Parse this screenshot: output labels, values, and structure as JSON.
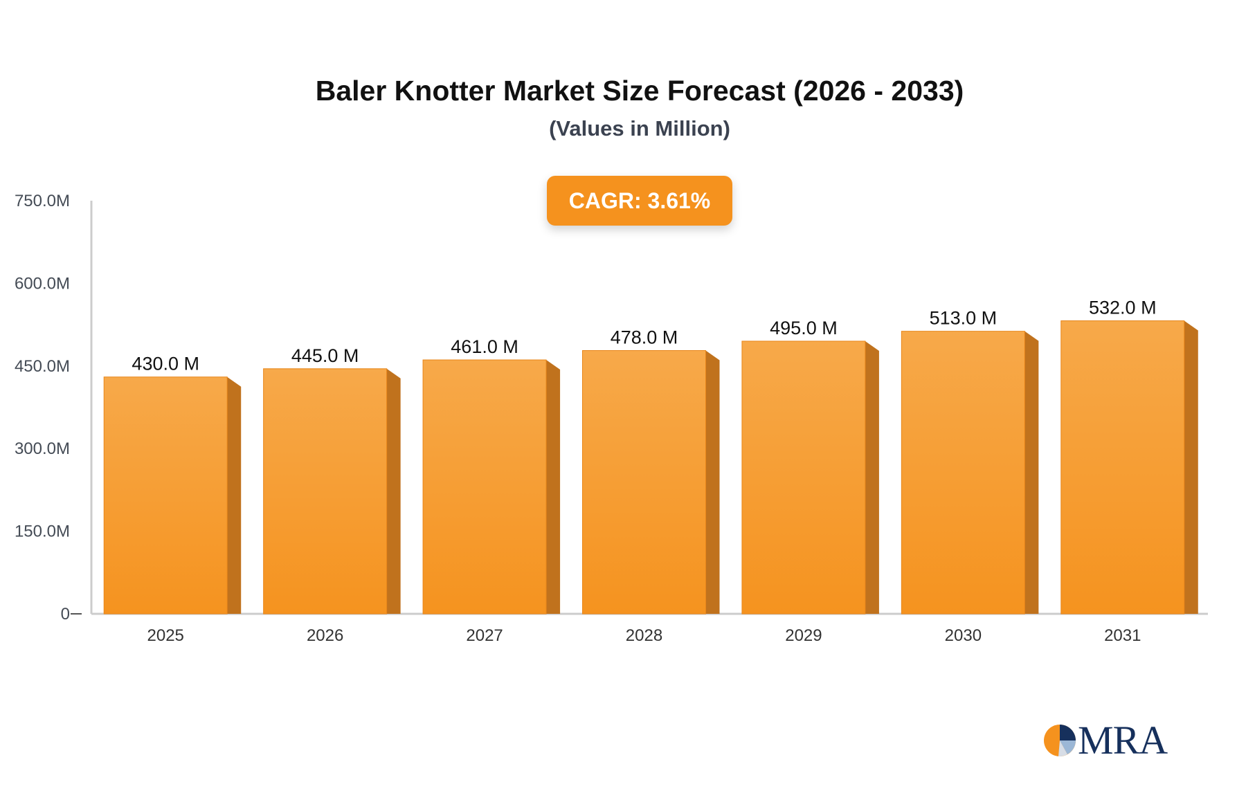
{
  "chart_data": {
    "type": "bar",
    "title": "Baler Knotter Market Size Forecast (2026 - 2033)",
    "subtitle": "(Values in Million)",
    "badge": "CAGR: 3.61%",
    "categories": [
      "2025",
      "2026",
      "2027",
      "2028",
      "2029",
      "2030",
      "2031"
    ],
    "values": [
      430.0,
      445.0,
      461.0,
      478.0,
      495.0,
      513.0,
      532.0
    ],
    "value_labels": [
      "430.0 M",
      "445.0 M",
      "461.0 M",
      "478.0 M",
      "495.0 M",
      "513.0 M",
      "532.0 M"
    ],
    "ylim": [
      0,
      750
    ],
    "yticks": [
      0,
      150,
      300,
      450,
      600,
      750
    ],
    "ytick_labels": [
      "0",
      "150.0M",
      "300.0M",
      "450.0M",
      "600.0M",
      "750.0M"
    ],
    "xlabel": "",
    "ylabel": "",
    "grid": false,
    "legend": "none",
    "colors": {
      "bar_top": "#f7a94a",
      "bar_bottom": "#f5931f",
      "bar_side": "#c0721d",
      "axis": "#cccccc",
      "badge": "#f5921e"
    }
  },
  "brand": {
    "logo_text": "MRA"
  }
}
